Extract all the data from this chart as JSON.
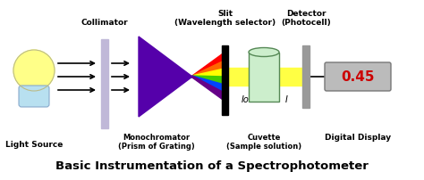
{
  "bg_color": "#ffffff",
  "title": "Basic Instrumentation of a Spectrophotometer",
  "title_fontsize": 9.5,
  "title_style": "bold",
  "bulb_yellow": "#ffff88",
  "bulb_blue": "#b8e0f0",
  "collimator_color": "#c0b8d8",
  "prism_color": "#5500aa",
  "rainbow_colors": [
    "#ff0000",
    "#ff6600",
    "#ffff00",
    "#44cc00",
    "#0044ff",
    "#660088"
  ],
  "slit_color": "#111111",
  "beam_yellow": "#ffff44",
  "cuvette_fill": "#cceecc",
  "cuvette_edge": "#558855",
  "detector_color": "#999999",
  "display_bg": "#bbbbbb",
  "display_text_color": "#cc0000",
  "display_value": "0.45",
  "arrow_color": "#000000",
  "text_color": "#000000",
  "label_fontsize": 6.5,
  "label_fontsize_sm": 6.0,
  "io_label": "Io",
  "i_label": "I",
  "lsrc_label": "Light Source",
  "coll_label": "Collimator",
  "mono_label": "Monochromator\n(Prism of Grating)",
  "slit_label": "Slit\n(Wavelength selector)",
  "cuv_label": "Cuvette\n(Sample solution)",
  "det_label": "Detector\n(Photocell)",
  "disp_label": "Digital Display"
}
